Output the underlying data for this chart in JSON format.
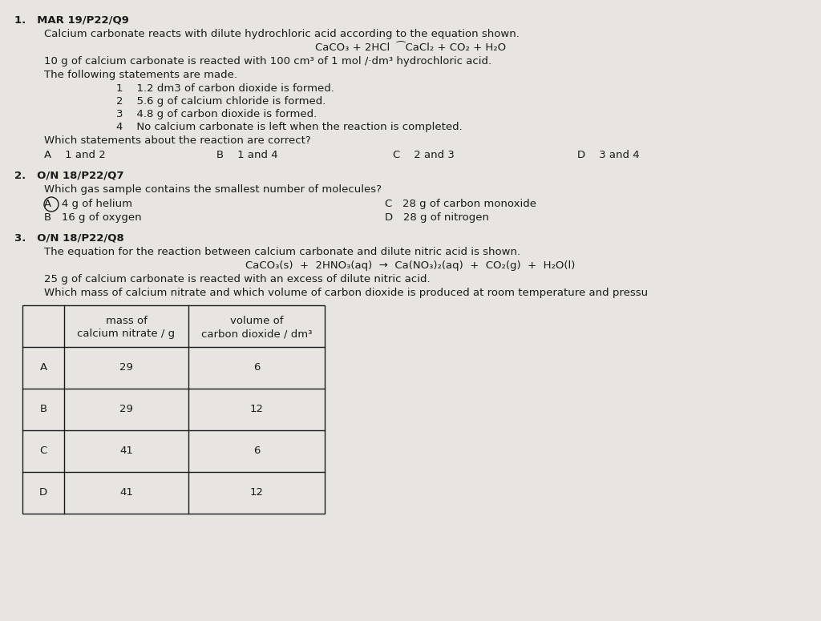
{
  "bg_color": "#e8e5e0",
  "text_color": "#1a1a1a",
  "q1_header": "1.   MAR 19/P22/Q9",
  "q1_line1": "Calcium carbonate reacts with dilute hydrochloric acid according to the equation shown.",
  "q1_eq": "CaCO₃ + 2HCl  ⁀CaCl₂ + CO₂ + H₂O",
  "q1_line2": "10 g of calcium carbonate is reacted with 100 cm³ of 1 mol /‧dm³ hydrochloric acid.",
  "q1_line3": "The following statements are made.",
  "q1_s1": "1    1.2 dm3 of carbon dioxide is formed.",
  "q1_s2": "2    5.6 g of calcium chloride is formed.",
  "q1_s3": "3    4.8 g of carbon dioxide is formed.",
  "q1_s4": "4    No calcium carbonate is left when the reaction is completed.",
  "q1_q": "Which statements about the reaction are correct?",
  "q1_A": "A    1 and 2",
  "q1_B": "B    1 and 4",
  "q1_C": "C    2 and 3",
  "q1_D": "D    3 and 4",
  "q2_header": "2.   O/N 18/P22/Q7",
  "q2_line1": "Which gas sample contains the smallest number of molecules?",
  "q2_A": "A   4 g of helium",
  "q2_B": "B   16 g of oxygen",
  "q2_C": "C   28 g of carbon monoxide",
  "q2_D": "D   28 g of nitrogen",
  "q3_header": "3.   O/N 18/P22/Q8",
  "q3_line1": "The equation for the reaction between calcium carbonate and dilute nitric acid is shown.",
  "q3_eq": "CaCO₃(s)  +  2HNO₃(aq)  →  Ca(NO₃)₂(aq)  +  CO₂(g)  +  H₂O(l)",
  "q3_line2": "25 g of calcium carbonate is reacted with an excess of dilute nitric acid.",
  "q3_line3": "Which mass of calcium nitrate and which volume of carbon dioxide is produced at room temperature and pressu",
  "table_col1_header1": "mass of",
  "table_col1_header2": "calcium nitrate / g",
  "table_col2_header1": "volume of",
  "table_col2_header2": "carbon dioxide / dm³",
  "table_rows": [
    [
      "A",
      "29",
      "6"
    ],
    [
      "B",
      "29",
      "12"
    ],
    [
      "C",
      "41",
      "6"
    ],
    [
      "D",
      "41",
      "12"
    ]
  ],
  "fs_base": 9.5,
  "fs_header": 10.5,
  "fs_eq": 9.5,
  "fs_table": 9.5
}
